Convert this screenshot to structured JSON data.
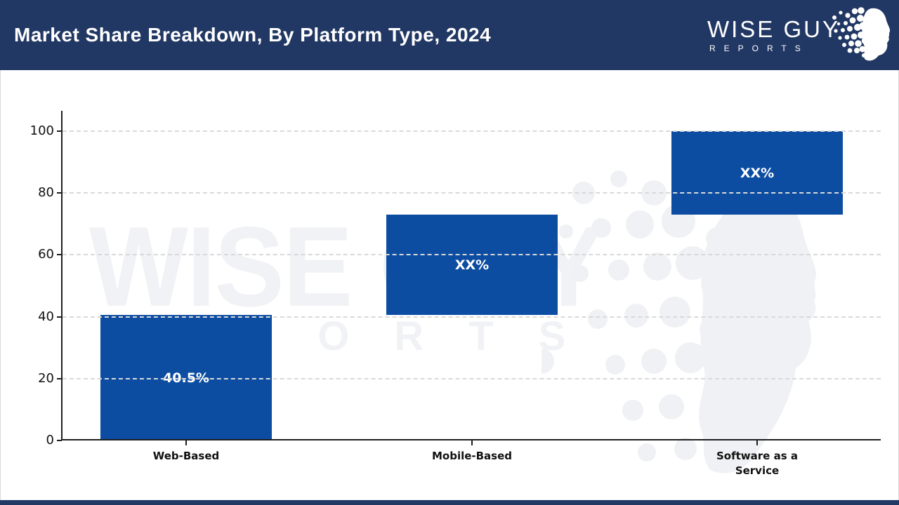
{
  "header": {
    "title": "Market Share Breakdown, By Platform Type, 2024",
    "logo_line1": "WISE GUY",
    "logo_line2": "REPORTS"
  },
  "watermark": {
    "line1": "WISE GUY",
    "line2": "REPORTS"
  },
  "chart_data": {
    "type": "bar",
    "subtype": "waterfall",
    "title": "Market Share Breakdown, By Platform Type, 2024",
    "categories": [
      "Web-Based",
      "Mobile-Based",
      "Software as a Service"
    ],
    "series": [
      {
        "name": "Market Share (%)",
        "segments": [
          {
            "category": "Web-Based",
            "start": 0,
            "end": 40.5,
            "label": "40.5%"
          },
          {
            "category": "Mobile-Based",
            "start": 40.5,
            "end": 73,
            "label": "XX%"
          },
          {
            "category": "Software as a Service",
            "start": 73,
            "end": 100,
            "label": "XX%"
          }
        ]
      }
    ],
    "yticks": [
      0,
      20,
      40,
      60,
      80,
      100
    ],
    "ylim": [
      0,
      106
    ],
    "xlabel": "",
    "ylabel": "",
    "grid": "horizontal-dashed",
    "legend": "none",
    "bar_color": "#0c4da2",
    "bar_label_color": "#ffffff"
  },
  "colors": {
    "header_navy": "#223864",
    "bar_blue": "#0c4da2",
    "grid_gray": "#d9d9d9",
    "axis_black": "#1f1f1f",
    "watermark_gray": "#f1f2f5"
  }
}
